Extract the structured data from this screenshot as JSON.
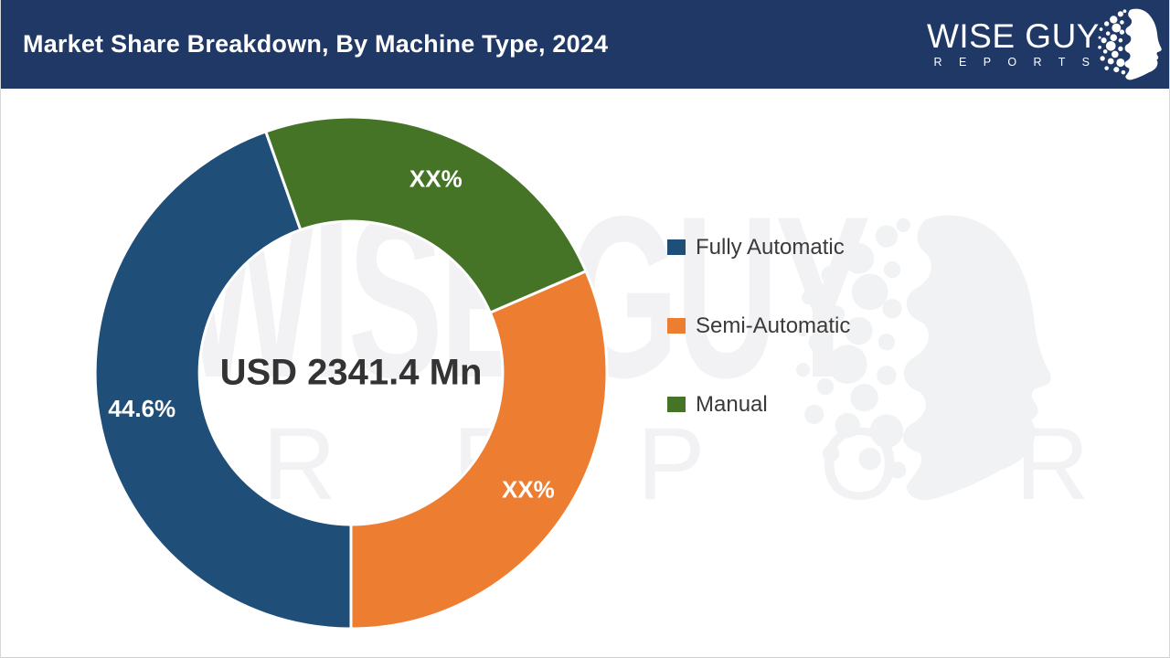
{
  "header": {
    "title": "Market Share Breakdown, By Machine Type, 2024",
    "bg_color": "#1f3866",
    "logo": {
      "wordmark": "WISE GUY",
      "subtext": "R E P O R T S"
    }
  },
  "watermark": {
    "line1": "WISE GUY",
    "line2": "R E P O R T S"
  },
  "chart_data": {
    "type": "pie",
    "subtype": "donut",
    "title": "Market Share Breakdown, By Machine Type, 2024",
    "center_label": "USD 2341.4 Mn",
    "start_angle_deg": 180,
    "direction": "clockwise",
    "hole_ratio": 0.59,
    "legend_position": "right",
    "segments": [
      {
        "label": "Fully Automatic",
        "display_label": "44.6%",
        "value_pct": 44.6,
        "color": "#1f4e79"
      },
      {
        "label": "Manual",
        "display_label": "XX%",
        "value_pct": 23.9,
        "color": "#457427"
      },
      {
        "label": "Semi-Automatic",
        "display_label": "XX%",
        "value_pct": 31.5,
        "color": "#ed7d31"
      }
    ]
  },
  "legend": {
    "items": [
      {
        "label": "Fully Automatic",
        "color": "#1f4e79"
      },
      {
        "label": "Semi-Automatic",
        "color": "#ed7d31"
      },
      {
        "label": "Manual",
        "color": "#457427"
      }
    ]
  }
}
